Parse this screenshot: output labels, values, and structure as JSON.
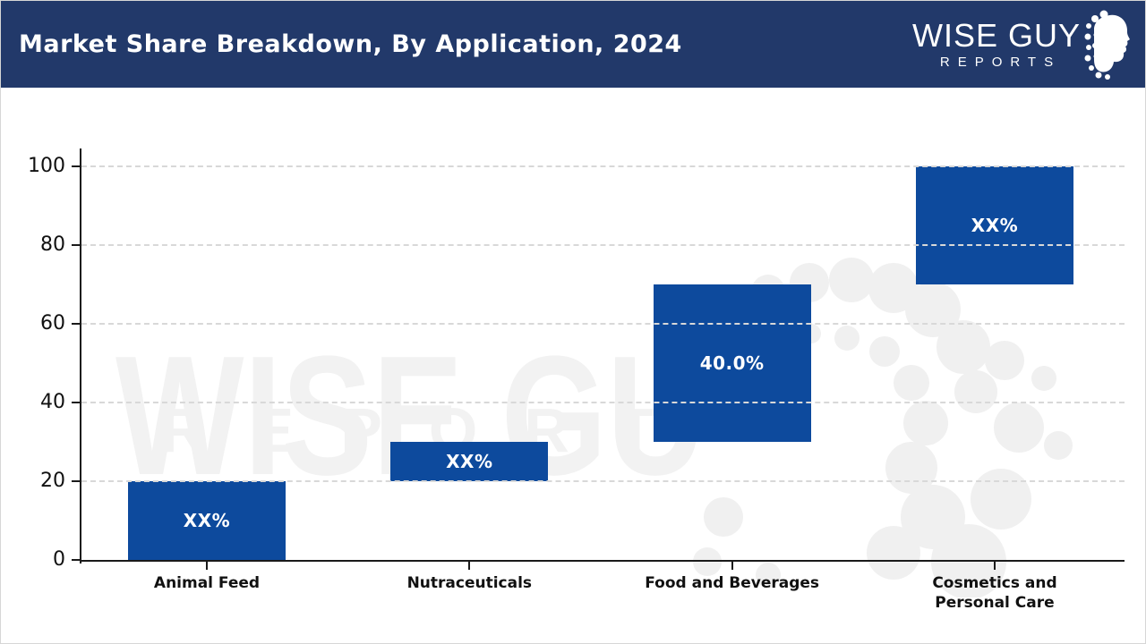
{
  "header": {
    "title": "Market Share Breakdown, By Application, 2024",
    "logo": {
      "line1": "WISE GUY",
      "line2": "REPORTS"
    }
  },
  "watermark": {
    "line1": "WISE GU",
    "line2": "REPORT"
  },
  "colors": {
    "header_bg": "#22396a",
    "bar": "#0d4a9d",
    "grid": "#d8d8d8",
    "axis": "#1a1a1a",
    "watermark": "#f2f2f2",
    "watermark_dots": "#f0f0f0"
  },
  "chart_data": {
    "type": "bar",
    "subtype": "waterfall-floating-bars",
    "title": "Market Share Breakdown, By Application, 2024",
    "categories": [
      "Animal Feed",
      "Nutraceuticals",
      "Food and Beverages",
      "Cosmetics and\nPersonal Care"
    ],
    "segments": [
      {
        "category": "Animal Feed",
        "start": 0,
        "end": 20,
        "label": "XX%"
      },
      {
        "category": "Nutraceuticals",
        "start": 20,
        "end": 30,
        "label": "XX%"
      },
      {
        "category": "Food and Beverages",
        "start": 30,
        "end": 70,
        "label": "40.0%"
      },
      {
        "category": "Cosmetics and Personal Care",
        "start": 70,
        "end": 100,
        "label": "XX%"
      }
    ],
    "yticks": [
      0,
      20,
      40,
      60,
      80,
      100
    ],
    "ylim": [
      0,
      105
    ],
    "xlabel": "",
    "ylabel": "",
    "grid": "horizontal-dashed",
    "legend": "none"
  }
}
